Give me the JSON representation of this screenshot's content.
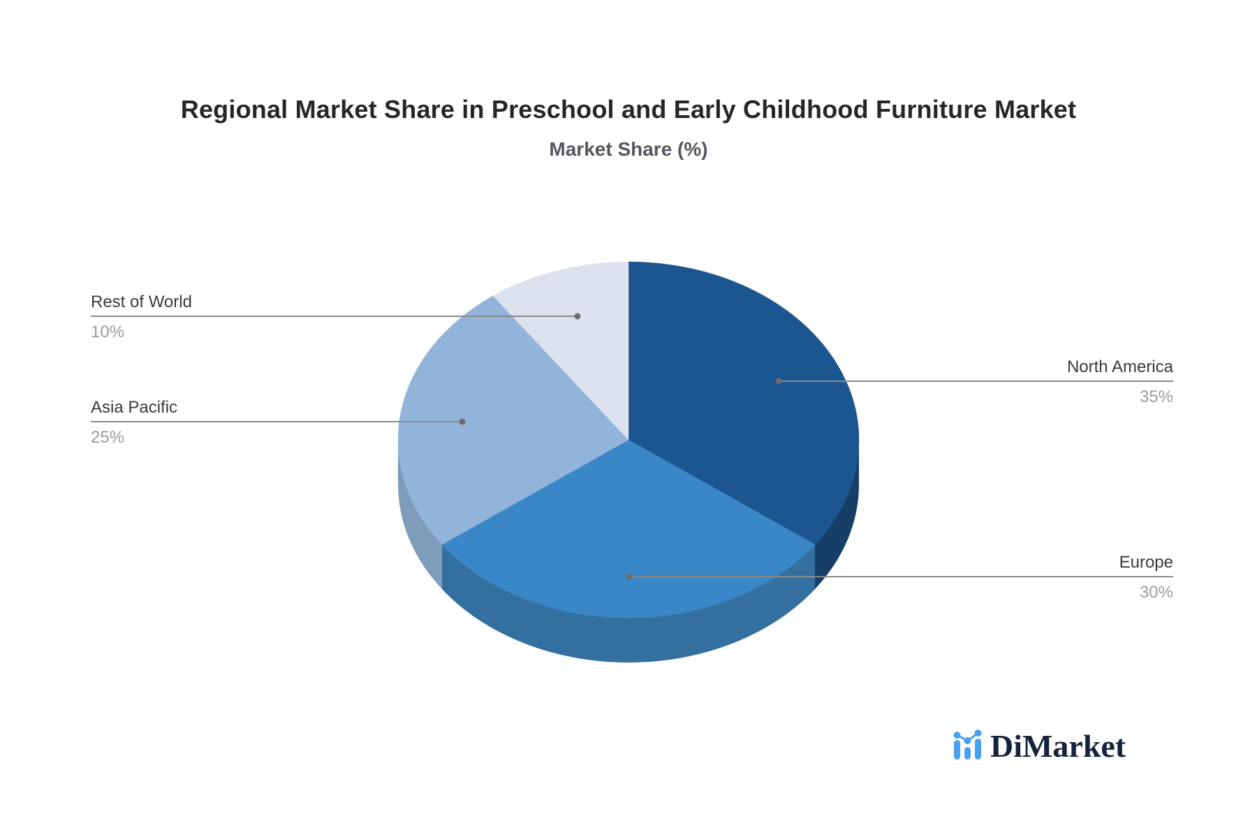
{
  "header": {
    "title": "Regional Market Share in Preschool and Early Childhood Furniture Market",
    "subtitle": "Market Share (%)"
  },
  "chart_data": {
    "type": "pie",
    "style": "3d",
    "title": "Regional Market Share in Preschool and Early Childhood Furniture Market",
    "value_label": "Market Share (%)",
    "unit": "%",
    "start_angle": "top",
    "direction": "clockwise",
    "legend_position": "none",
    "labels_as_callouts": true,
    "slices": [
      {
        "label": "North America",
        "value": 35,
        "display": "35%",
        "color": "#1B5690",
        "side_color": "#163F68",
        "callout_side": "right"
      },
      {
        "label": "Europe",
        "value": 30,
        "display": "30%",
        "color": "#3A87C8",
        "side_color": "#34709F",
        "callout_side": "right"
      },
      {
        "label": "Asia Pacific",
        "value": 25,
        "display": "25%",
        "color": "#92B4DA",
        "side_color": "#7F9CBA",
        "callout_side": "left"
      },
      {
        "label": "Rest of World",
        "value": 10,
        "display": "10%",
        "color": "#DDE3EE",
        "side_color": "#C6D0DF",
        "callout_side": "left"
      }
    ],
    "callout_style": {
      "line_color": "#898989",
      "dot_color": "#6B6B6B",
      "label_color": "#3A3A3A",
      "value_color": "#9C9C9C"
    }
  },
  "brand": {
    "name": "DiMarket",
    "icon": "bar-line-chart-icon",
    "icon_color": "#47A0F0",
    "text_color": "#16233C"
  }
}
